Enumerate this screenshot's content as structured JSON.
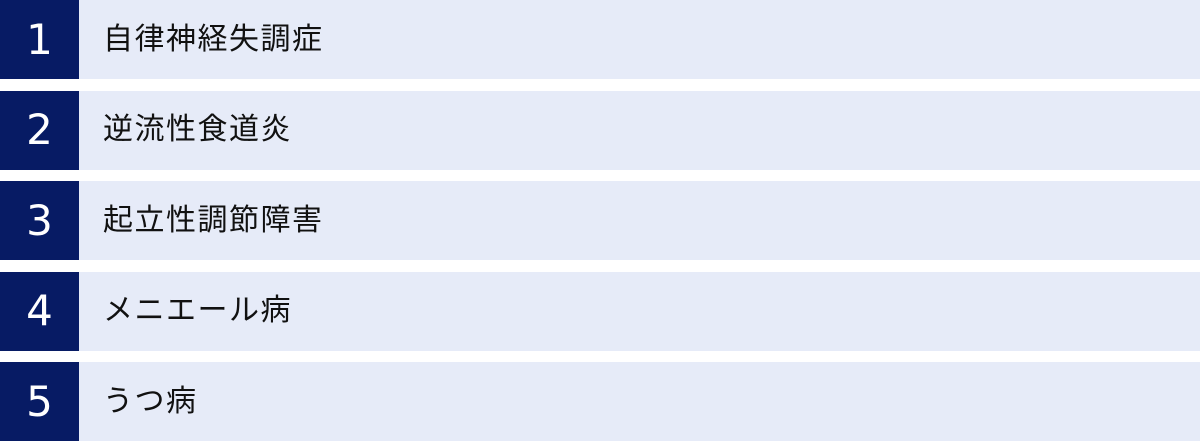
{
  "list": {
    "items": [
      {
        "rank": "1",
        "label": "自律神経失調症"
      },
      {
        "rank": "2",
        "label": "逆流性食道炎"
      },
      {
        "rank": "3",
        "label": "起立性調節障害"
      },
      {
        "rank": "4",
        "label": "メニエール病"
      },
      {
        "rank": "5",
        "label": "うつ病"
      }
    ]
  },
  "colors": {
    "rank_badge_bg": "#071B64",
    "row_bg": "#E6EBF8",
    "rank_text": "#FFFFFF",
    "label_text": "#111111",
    "page_bg": "#FFFFFF"
  }
}
